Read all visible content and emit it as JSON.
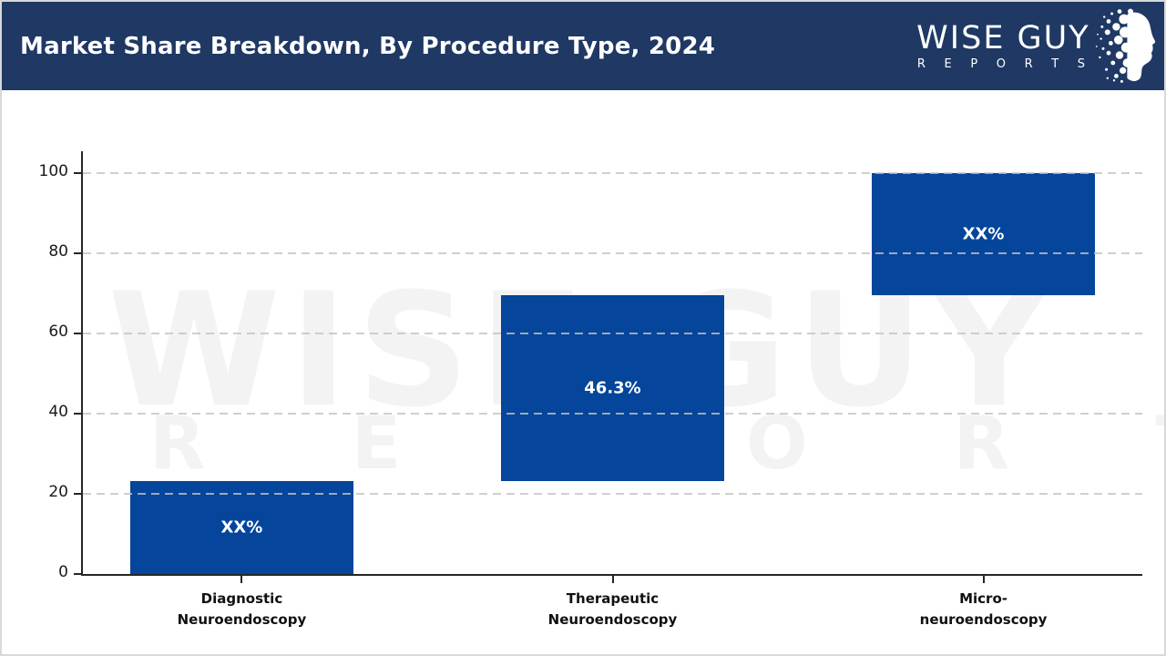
{
  "header": {
    "title": "Market Share Breakdown, By Procedure Type, 2024",
    "bg_color": "#1f3864",
    "logo": {
      "line1": "WISE GUY",
      "line2": "REPORTS"
    }
  },
  "watermark": {
    "line1": "WISE GUY",
    "line2": "REPORTS"
  },
  "chart_data": {
    "type": "bar",
    "subtype": "waterfall",
    "title": "Market Share Breakdown, By Procedure Type, 2024",
    "xlabel": "",
    "ylabel": "",
    "categories": [
      "Diagnostic Neuroendoscopy",
      "Therapeutic Neuroendoscopy",
      "Micro-neuroendoscopy"
    ],
    "bars": [
      {
        "label_line1": "Diagnostic",
        "label_line2": "Neuroendoscopy",
        "start": 0,
        "end": 23.2,
        "value": 23.2,
        "value_label": "XX%"
      },
      {
        "label_line1": "Therapeutic",
        "label_line2": "Neuroendoscopy",
        "start": 23.2,
        "end": 69.5,
        "value": 46.3,
        "value_label": "46.3%"
      },
      {
        "label_line1": "Micro-",
        "label_line2": "neuroendoscopy",
        "start": 69.5,
        "end": 100,
        "value": 30.5,
        "value_label": "XX%"
      }
    ],
    "y_ticks": [
      0,
      20,
      40,
      60,
      80,
      100
    ],
    "ylim": [
      0,
      105.5
    ],
    "grid": "dashed-horizontal",
    "legend": false,
    "bar_color": "#05459b",
    "grid_color": "#d8d8d8",
    "axis_color": "#262626"
  }
}
